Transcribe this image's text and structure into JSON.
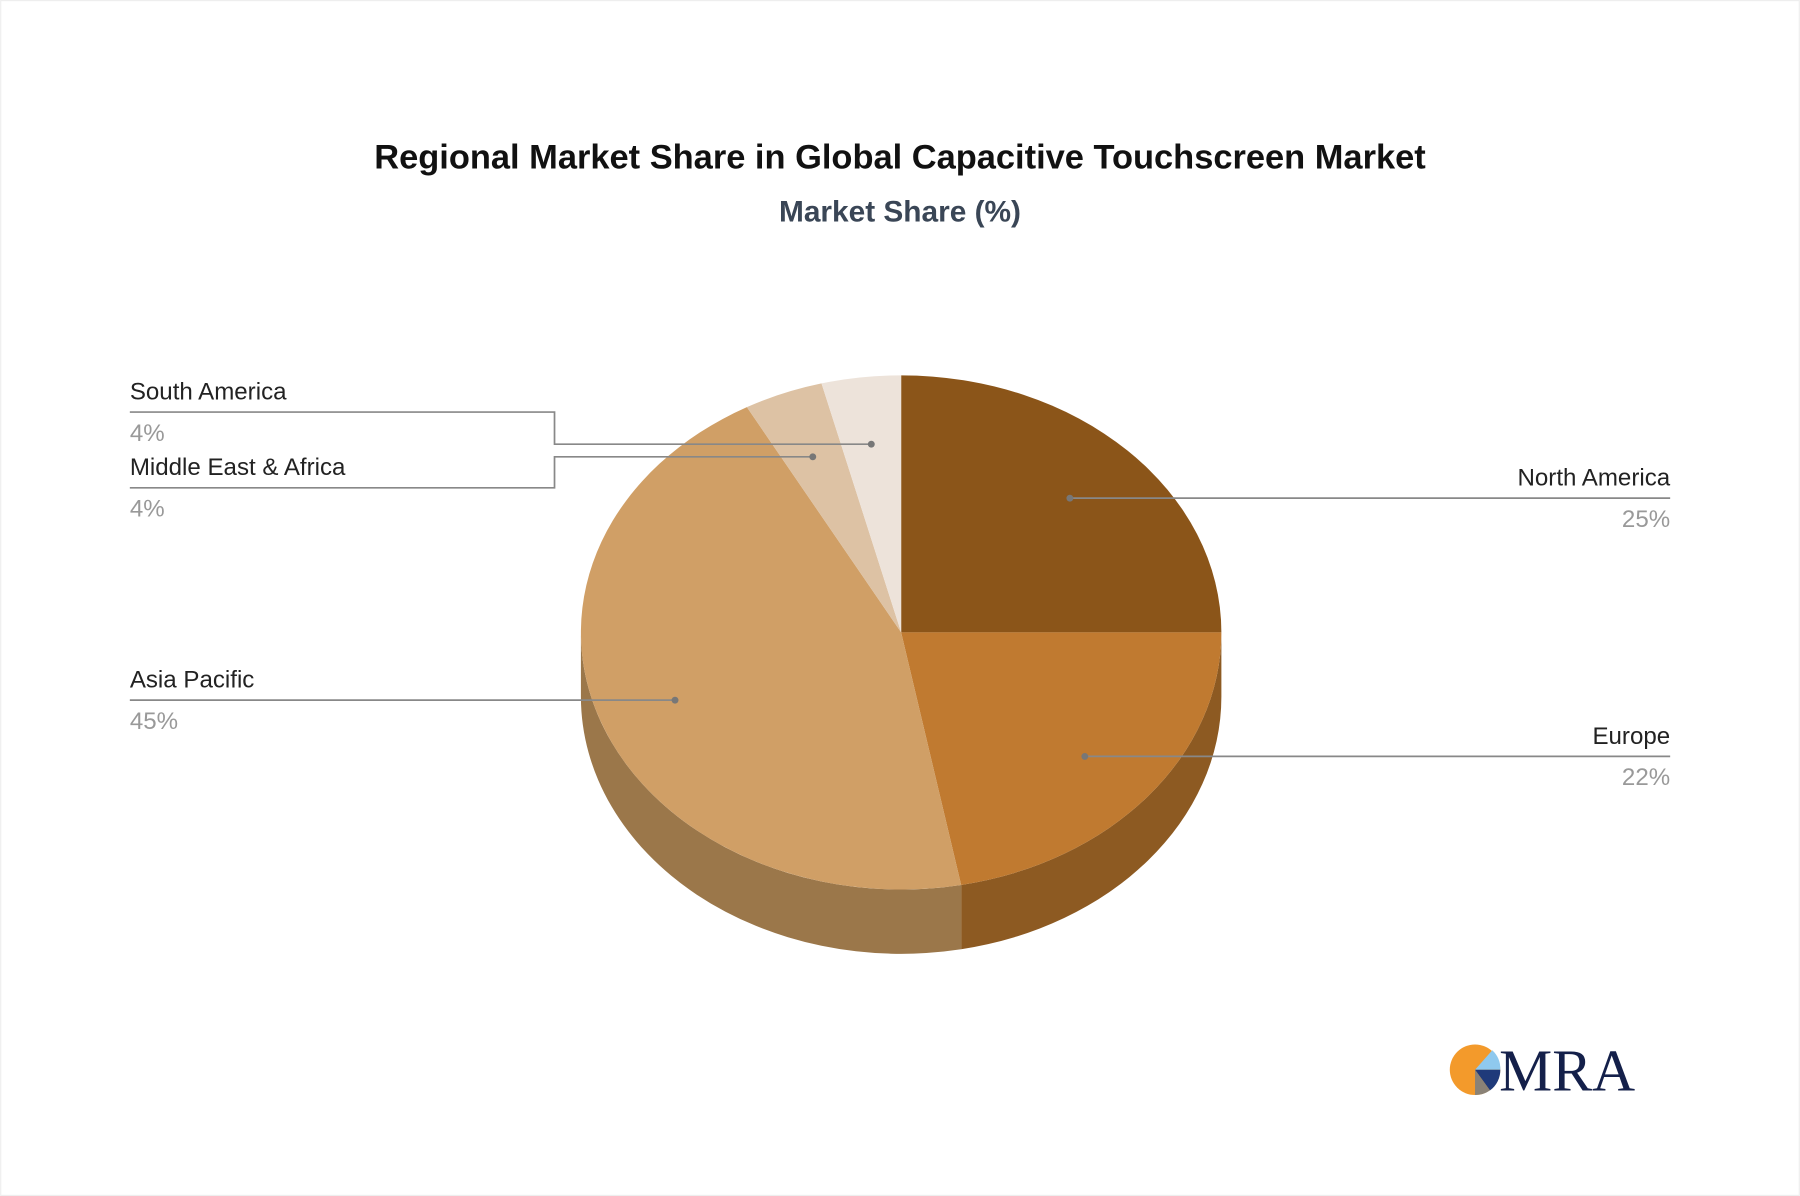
{
  "chart_data": {
    "type": "pie",
    "style": "3d",
    "title": "Regional Market Share in Global Capacitive Touchscreen Market",
    "subtitle": "Market Share (%)",
    "slices": [
      {
        "label": "North America",
        "value": 25,
        "display": "25%",
        "color": "#8b5519",
        "side_color": "#6e4414"
      },
      {
        "label": "Europe",
        "value": 22,
        "display": "22%",
        "color": "#c07a30",
        "side_color": "#8d5a22"
      },
      {
        "label": "Asia Pacific",
        "value": 45,
        "display": "45%",
        "color": "#d09f66",
        "side_color": "#9b774a"
      },
      {
        "label": "Middle East & Africa",
        "value": 4,
        "display": "4%",
        "color": "#ddc2a4",
        "side_color": "#a88f75"
      },
      {
        "label": "South America",
        "value": 4,
        "display": "4%",
        "color": "#ede3da",
        "side_color": "#b5aaa0"
      }
    ],
    "legend": "callout labels"
  },
  "logo": {
    "text": "MRA",
    "colors": [
      "#f39a2b",
      "#8fc9ee",
      "#1f3a7a",
      "#8a8276"
    ]
  }
}
